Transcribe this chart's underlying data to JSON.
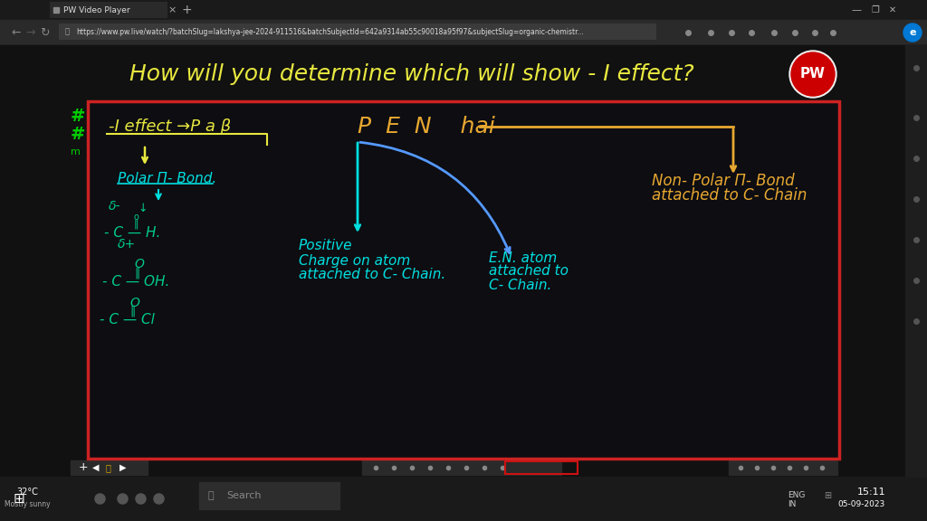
{
  "bg_color": "#111111",
  "title": "How will you determine which will show - I effect?",
  "title_color": "#e8e840",
  "title_fontsize": 18,
  "box_border_color": "#cc2222",
  "board_color": "#0d0d12",
  "url_text": "https://www.pw.live/watch/?batchSlug=lakshya-jee-2024-911516&batchSubjectId=642a9314ab55c90018a95f97&subjectSlug=organic-chemistr...",
  "pen_label": "P  E  N    hai",
  "pen_color": "#e8a830",
  "minus_i_label": "-I effect →P a β",
  "minus_i_color": "#e8e840",
  "polar_bond_label": "Polar Π- Bond.",
  "polar_bond_color": "#00e0e0",
  "positive_charge_lines": [
    "Positive",
    "Charge on atom",
    "attached to C- Chain."
  ],
  "positive_charge_color": "#00e0e0",
  "en_atom_lines": [
    "E.N. atom",
    "attached to",
    "C- Chain."
  ],
  "en_atom_color": "#00e0e0",
  "non_polar_lines": [
    "Non- Polar Π- Bond",
    "attached to C- Chain"
  ],
  "non_polar_color": "#e8a830",
  "chem_color": "#00cc88",
  "hashtag_color": "#00cc00",
  "time_text": "15:11",
  "date_text": "05-09-2023",
  "temp_line1": "32°C",
  "temp_line2": "Mostly sunny",
  "tab_title": "PW Video Player",
  "browser_nav_color": "#1e1e1e",
  "tab_color": "#2a2a2a",
  "taskbar_color": "#1a1a1a"
}
